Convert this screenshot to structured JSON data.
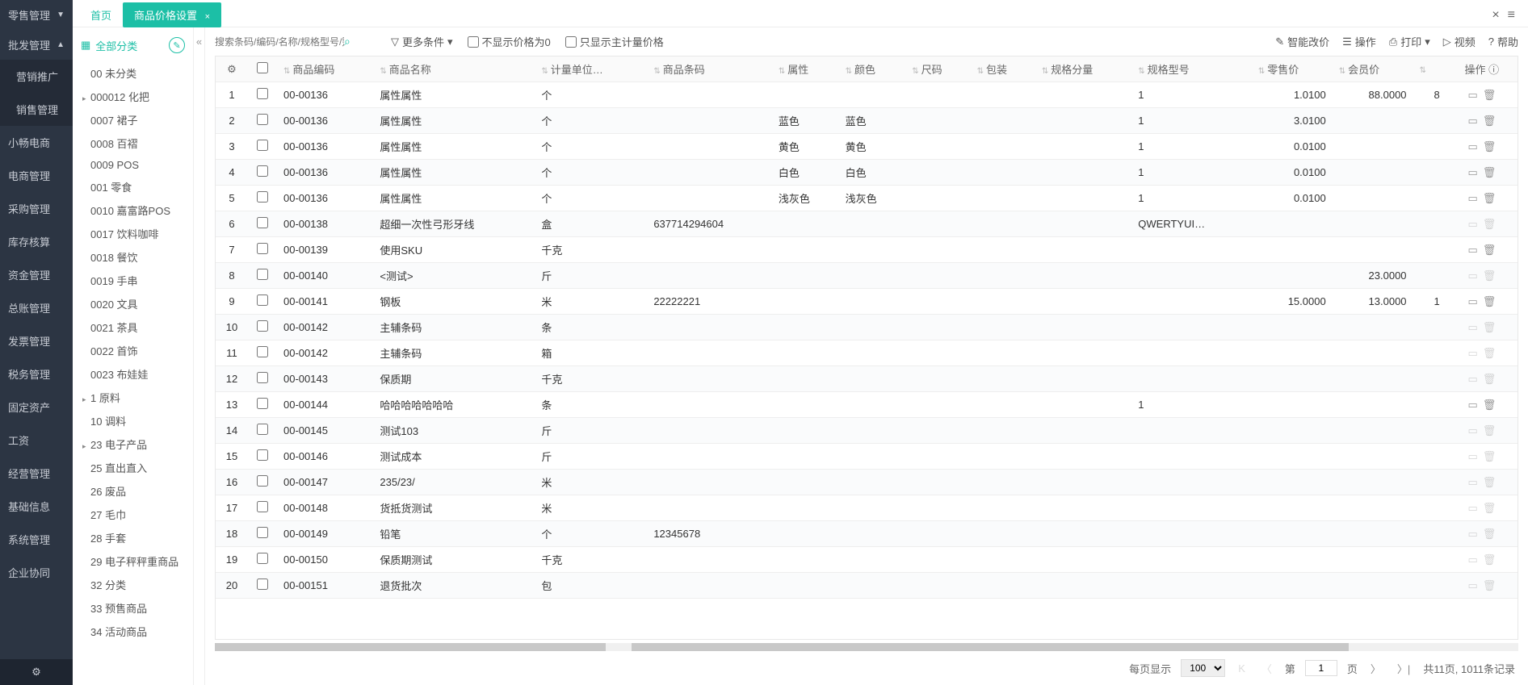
{
  "sidebar": {
    "top": [
      {
        "label": "零售管理",
        "arrow": "▼"
      },
      {
        "label": "批发管理",
        "arrow": "▲"
      }
    ],
    "sub": [
      {
        "label": "营销推广"
      },
      {
        "label": "销售管理"
      }
    ],
    "items": [
      {
        "label": "小畅电商"
      },
      {
        "label": "电商管理"
      },
      {
        "label": "采购管理"
      },
      {
        "label": "库存核算"
      },
      {
        "label": "资金管理"
      },
      {
        "label": "总账管理"
      },
      {
        "label": "发票管理"
      },
      {
        "label": "税务管理"
      },
      {
        "label": "固定资产"
      },
      {
        "label": "工资"
      },
      {
        "label": "经营管理"
      },
      {
        "label": "基础信息"
      },
      {
        "label": "系统管理"
      },
      {
        "label": "企业协同"
      }
    ]
  },
  "tabs": {
    "home": "首页",
    "active": "商品价格设置"
  },
  "tree": {
    "header": "全部分类",
    "items": [
      {
        "label": "00 未分类",
        "expand": false
      },
      {
        "label": "000012 化把",
        "expand": true
      },
      {
        "label": "0007 裙子",
        "expand": false
      },
      {
        "label": "0008 百褶",
        "expand": false
      },
      {
        "label": "0009 POS",
        "expand": false
      },
      {
        "label": "001 零食",
        "expand": false
      },
      {
        "label": "0010 嘉富路POS",
        "expand": false
      },
      {
        "label": "0017 饮料咖啡",
        "expand": false
      },
      {
        "label": "0018 餐饮",
        "expand": false
      },
      {
        "label": "0019 手串",
        "expand": false
      },
      {
        "label": "0020 文具",
        "expand": false
      },
      {
        "label": "0021 茶具",
        "expand": false
      },
      {
        "label": "0022 首饰",
        "expand": false
      },
      {
        "label": "0023 布娃娃",
        "expand": false
      },
      {
        "label": "1 原料",
        "expand": true
      },
      {
        "label": "10 调料",
        "expand": false
      },
      {
        "label": "23 电子产品",
        "expand": true
      },
      {
        "label": "25 直出直入",
        "expand": false
      },
      {
        "label": "26 废品",
        "expand": false
      },
      {
        "label": "27 毛巾",
        "expand": false
      },
      {
        "label": "28 手套",
        "expand": false
      },
      {
        "label": "29 电子秤秤重商品",
        "expand": false
      },
      {
        "label": "32 分类",
        "expand": false
      },
      {
        "label": "33 预售商品",
        "expand": false
      },
      {
        "label": "34 活动商品",
        "expand": false
      }
    ]
  },
  "toolbar": {
    "search_placeholder": "搜索条码/编码/名称/规格型号/别名",
    "more": "更多条件",
    "hide_zero": "不显示价格为0",
    "only_main": "只显示主计量价格",
    "smart": "智能改价",
    "action": "操作",
    "print": "打印",
    "video": "视频",
    "help": "帮助"
  },
  "columns": [
    "",
    "",
    "商品编码",
    "商品名称",
    "计量单位…",
    "商品条码",
    "属性",
    "颜色",
    "尺码",
    "包装",
    "规格分量",
    "规格型号",
    "零售价",
    "会员价",
    "",
    "操作"
  ],
  "rows": [
    {
      "no": 1,
      "code": "00-00136",
      "name": "属性属性",
      "unit": "个",
      "barcode": "",
      "attr": "",
      "color": "",
      "spec": "1",
      "retail": "1.0100",
      "member": "88.0000",
      "ext": "8",
      "act": true
    },
    {
      "no": 2,
      "code": "00-00136",
      "name": "属性属性",
      "unit": "个",
      "barcode": "",
      "attr": "蓝色",
      "color": "蓝色",
      "spec": "1",
      "retail": "3.0100",
      "member": "",
      "act": true
    },
    {
      "no": 3,
      "code": "00-00136",
      "name": "属性属性",
      "unit": "个",
      "barcode": "",
      "attr": "黄色",
      "color": "黄色",
      "spec": "1",
      "retail": "0.0100",
      "member": "",
      "act": true
    },
    {
      "no": 4,
      "code": "00-00136",
      "name": "属性属性",
      "unit": "个",
      "barcode": "",
      "attr": "白色",
      "color": "白色",
      "spec": "1",
      "retail": "0.0100",
      "member": "",
      "act": true
    },
    {
      "no": 5,
      "code": "00-00136",
      "name": "属性属性",
      "unit": "个",
      "barcode": "",
      "attr": "浅灰色",
      "color": "浅灰色",
      "spec": "1",
      "retail": "0.0100",
      "member": "",
      "act": true
    },
    {
      "no": 6,
      "code": "00-00138",
      "name": "超细一次性弓形牙线",
      "unit": "盒",
      "barcode": "637714294604",
      "attr": "",
      "color": "",
      "spec": "QWERTYUI…",
      "retail": "",
      "member": "",
      "act": false
    },
    {
      "no": 7,
      "code": "00-00139",
      "name": "使用SKU",
      "unit": "千克",
      "barcode": "",
      "attr": "",
      "color": "",
      "spec": "",
      "retail": "",
      "member": "",
      "act": true
    },
    {
      "no": 8,
      "code": "00-00140",
      "name": "<测试>",
      "unit": "斤",
      "barcode": "",
      "attr": "",
      "color": "",
      "spec": "",
      "retail": "",
      "member": "23.0000",
      "act": false
    },
    {
      "no": 9,
      "code": "00-00141",
      "name": "钢板",
      "unit": "米",
      "barcode": "22222221",
      "attr": "",
      "color": "",
      "spec": "",
      "retail": "15.0000",
      "member": "13.0000",
      "ext": "1",
      "act": true
    },
    {
      "no": 10,
      "code": "00-00142",
      "name": "主辅条码",
      "unit": "条",
      "barcode": "",
      "attr": "",
      "color": "",
      "spec": "",
      "retail": "",
      "member": "",
      "act": false
    },
    {
      "no": 11,
      "code": "00-00142",
      "name": "主辅条码",
      "unit": "箱",
      "barcode": "",
      "attr": "",
      "color": "",
      "spec": "",
      "retail": "",
      "member": "",
      "act": false
    },
    {
      "no": 12,
      "code": "00-00143",
      "name": "保质期",
      "unit": "千克",
      "barcode": "",
      "attr": "",
      "color": "",
      "spec": "",
      "retail": "",
      "member": "",
      "act": false
    },
    {
      "no": 13,
      "code": "00-00144",
      "name": "哈哈哈哈哈哈哈",
      "unit": "条",
      "barcode": "",
      "attr": "",
      "color": "",
      "spec": "1",
      "retail": "",
      "member": "",
      "act": true
    },
    {
      "no": 14,
      "code": "00-00145",
      "name": "测试103",
      "unit": "斤",
      "barcode": "",
      "attr": "",
      "color": "",
      "spec": "",
      "retail": "",
      "member": "",
      "act": false
    },
    {
      "no": 15,
      "code": "00-00146",
      "name": "测试成本",
      "unit": "斤",
      "barcode": "",
      "attr": "",
      "color": "",
      "spec": "",
      "retail": "",
      "member": "",
      "act": false
    },
    {
      "no": 16,
      "code": "00-00147",
      "name": "235/23/",
      "unit": "米",
      "barcode": "",
      "attr": "",
      "color": "",
      "spec": "",
      "retail": "",
      "member": "",
      "act": false
    },
    {
      "no": 17,
      "code": "00-00148",
      "name": "货抵货测试",
      "unit": "米",
      "barcode": "",
      "attr": "",
      "color": "",
      "spec": "",
      "retail": "",
      "member": "",
      "act": false
    },
    {
      "no": 18,
      "code": "00-00149",
      "name": "铅笔",
      "unit": "个",
      "barcode": "12345678",
      "attr": "",
      "color": "",
      "spec": "",
      "retail": "",
      "member": "",
      "act": false
    },
    {
      "no": 19,
      "code": "00-00150",
      "name": "保质期测试",
      "unit": "千克",
      "barcode": "",
      "attr": "",
      "color": "",
      "spec": "",
      "retail": "",
      "member": "",
      "act": false
    },
    {
      "no": 20,
      "code": "00-00151",
      "name": "退货批次",
      "unit": "包",
      "barcode": "",
      "attr": "",
      "color": "",
      "spec": "",
      "retail": "",
      "member": "",
      "act": false
    }
  ],
  "footer": {
    "per_page_label": "每页显示",
    "per_page_value": "100",
    "page_label_pre": "第",
    "page_value": "1",
    "page_label_post": "页",
    "summary": "共11页, 1011条记录"
  }
}
